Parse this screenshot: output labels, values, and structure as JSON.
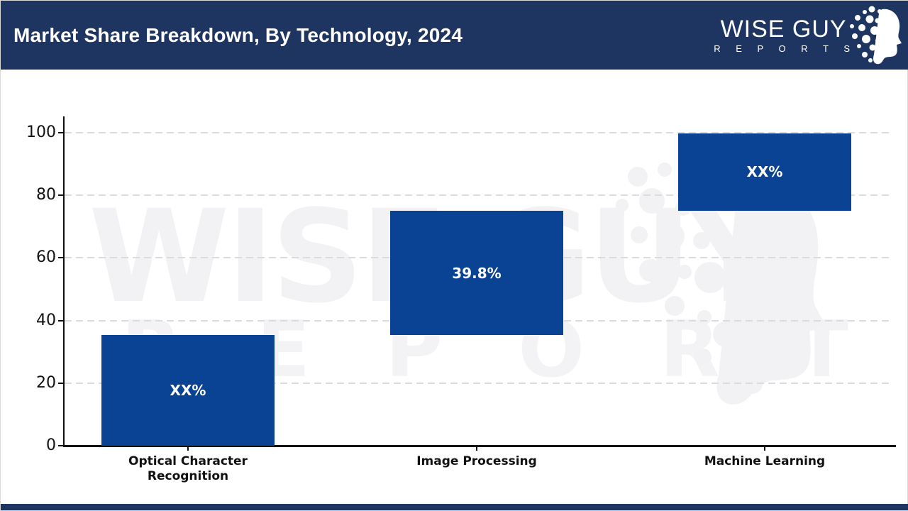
{
  "header": {
    "title": "Market Share Breakdown, By Technology, 2024",
    "bg_color": "#1e3562",
    "logo": {
      "line1": "WISE GUY",
      "line2": "R E P O R T S"
    }
  },
  "watermark": {
    "line1": "WISE GUY",
    "line2": "R E P O R T S"
  },
  "footer": {
    "bar_color": "#1e3562"
  },
  "chart_data": {
    "type": "bar",
    "subtype": "floating-segment (waterfall-style) column chart",
    "title": "Market Share Breakdown, By Technology, 2024",
    "categories": [
      "Optical Character Recognition",
      "Image Processing",
      "Machine Learning"
    ],
    "series": [
      {
        "name": "Market Share %",
        "segments": [
          {
            "category": "Optical Character Recognition",
            "start": 0,
            "end": 35.3,
            "label": "XX%"
          },
          {
            "category": "Image Processing",
            "start": 35.3,
            "end": 75.1,
            "label": "39.8%"
          },
          {
            "category": "Machine Learning",
            "start": 75.1,
            "end": 99.8,
            "label": "XX%"
          }
        ]
      }
    ],
    "yticks": [
      0,
      20,
      40,
      60,
      80,
      100
    ],
    "ylim": [
      0,
      105
    ],
    "xlabel": "",
    "ylabel": "",
    "grid": "horizontal dashed",
    "legend": "none",
    "bar_color": "#0b4394",
    "grid_color": "#dcdcdc",
    "text_color": "#111111"
  }
}
